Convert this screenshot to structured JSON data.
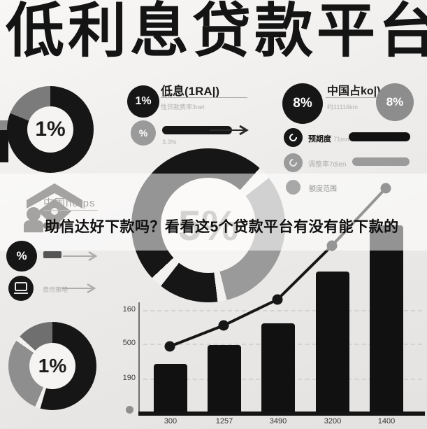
{
  "title": "低利息贷款平台",
  "headline": "助信达好下款吗？看看这5个贷款平台有没有能下款的",
  "colors": {
    "ink": "#141414",
    "gray_ring": "#9a9a9a",
    "band": "rgba(255,255,255,0.55)",
    "muted_text": "#b3b1af",
    "bg": "#efedeb"
  },
  "donuts": {
    "top_left": {
      "value": "1%"
    },
    "center": {
      "value": "5%"
    },
    "bottom_left": {
      "value": "1%"
    }
  },
  "mid_card": {
    "badge": "1%",
    "title": "低息(1RA|)",
    "subtitle": "性贷款费率3net",
    "percent_badge": "%",
    "footnote": "3.3%"
  },
  "right_card": {
    "badge": "8%",
    "title": "中国占ko|)",
    "subtitle": "约11116km",
    "side_badge": "8%",
    "rows": [
      {
        "icon": "clock-icon",
        "label": "预期度",
        "sub": "71mm"
      },
      {
        "icon": "clock-icon",
        "label": "调整率7dien",
        "sub": ""
      },
      {
        "icon": "dot-icon",
        "label": "额度范围",
        "sub": ""
      }
    ]
  },
  "left_panel": {
    "org": "中国horps",
    "percent_badge": "%",
    "monitor_label": "费用策略"
  },
  "chart_data": {
    "type": "bar",
    "title": "",
    "categories": [
      "300",
      "1257",
      "3490",
      "3200",
      "1400"
    ],
    "series": [
      {
        "name": "bars",
        "values": [
          68,
          95,
          126,
          200,
          266
        ]
      },
      {
        "name": "trend-line",
        "values": [
          93,
          123,
          160,
          237,
          319
        ]
      }
    ],
    "values_unit": "px-above-baseline",
    "y_ticks": [
      "160",
      "500",
      "190"
    ],
    "xlabel": "",
    "ylabel": "",
    "grid": "dashed-horizontal",
    "legend": "none"
  }
}
